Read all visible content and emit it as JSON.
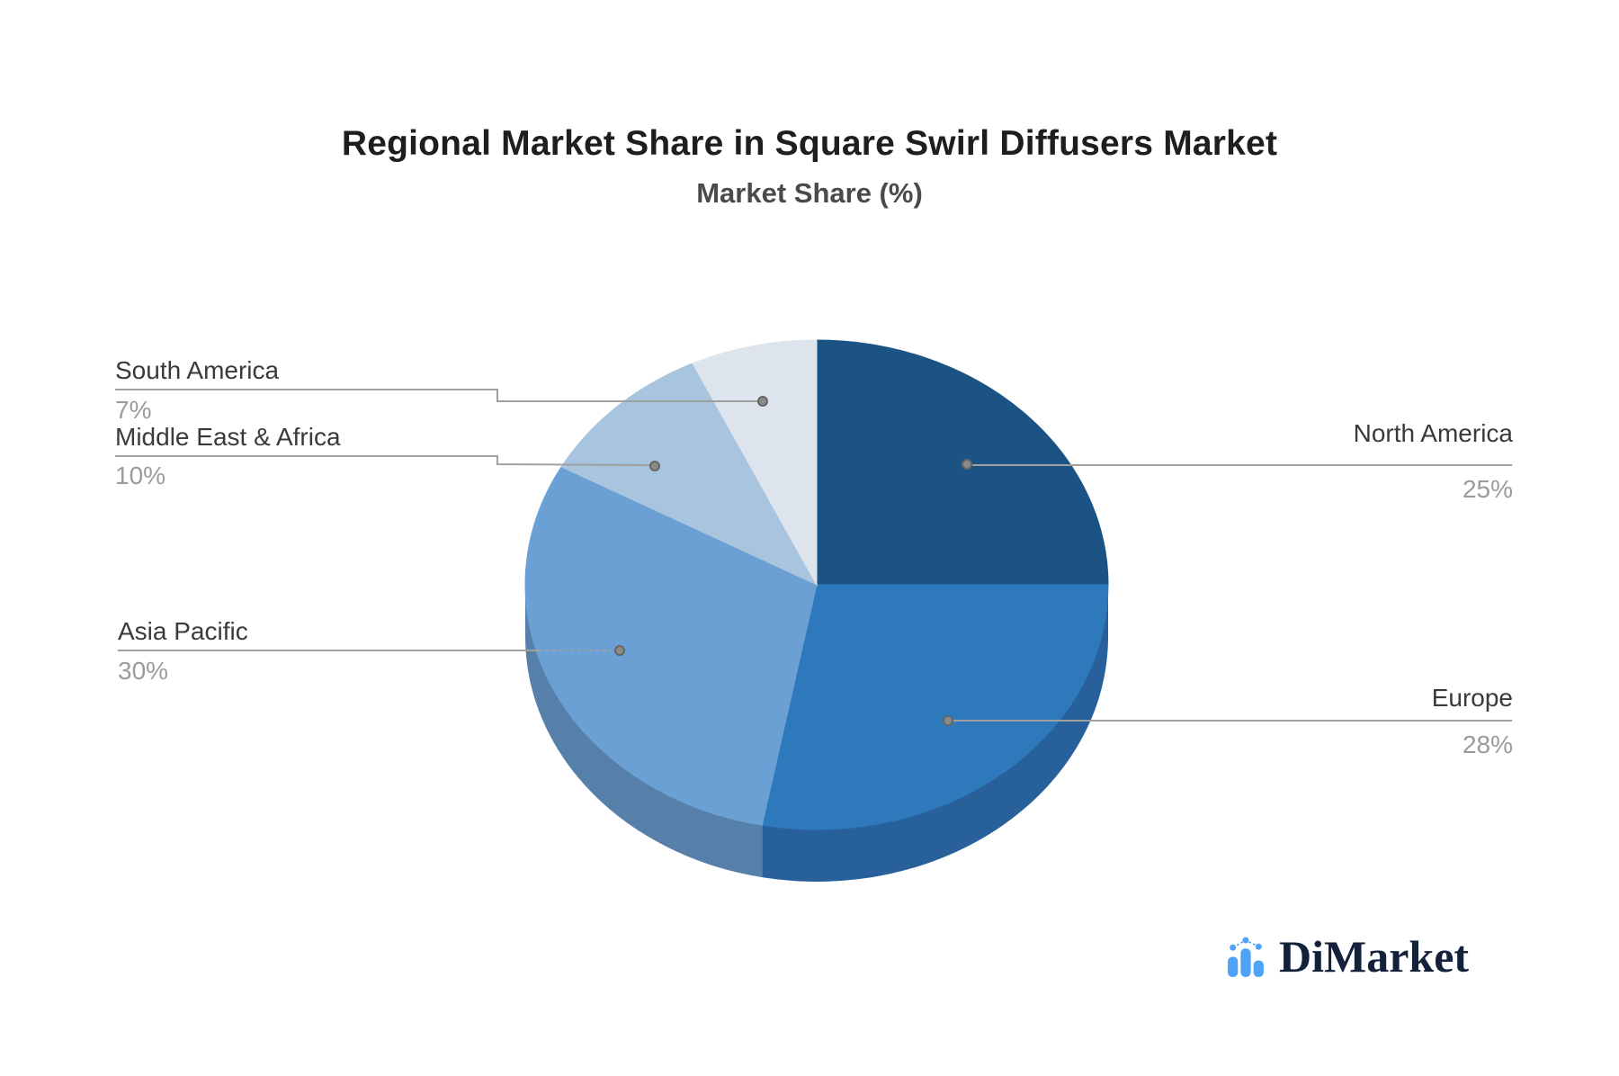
{
  "page": {
    "background": "#ffffff"
  },
  "header": {
    "title": "Regional Market Share in Square Swirl Diffusers Market",
    "subtitle": "Market Share (%)"
  },
  "chart_data": {
    "type": "pie",
    "title": "Regional Market Share in Square Swirl Diffusers Market",
    "subtitle": "Market Share (%)",
    "unit": "%",
    "effect": "3d",
    "start_angle_deg": 0,
    "direction": "clockwise",
    "legend_position": "callout-labels",
    "slices": [
      {
        "label": "North America",
        "value": 25,
        "value_text": "25%",
        "color": "#1B5385",
        "side_color": "#174569"
      },
      {
        "label": "Europe",
        "value": 28,
        "value_text": "28%",
        "color": "#2E78BC",
        "side_color": "#27609A"
      },
      {
        "label": "Asia Pacific",
        "value": 30,
        "value_text": "30%",
        "color": "#6BA0D4",
        "side_color": "#567FA9"
      },
      {
        "label": "Middle East & Africa",
        "value": 10,
        "value_text": "10%",
        "color": "#A9C4DE",
        "side_color": "#8AA3BD"
      },
      {
        "label": "South America",
        "value": 7,
        "value_text": "7%",
        "color": "#DDE4EE",
        "side_color": "#B8C2D1"
      }
    ],
    "leader_line_color": "#a0a0a0",
    "leader_dot_color": "#808080",
    "label_color": "#3a3a3a",
    "value_color": "#9b9b9b"
  },
  "logo": {
    "text": "DiMarket",
    "icon": "bar-chart-with-dots-icon",
    "accent_color": "#4EA3F6",
    "text_color": "#13213b"
  }
}
